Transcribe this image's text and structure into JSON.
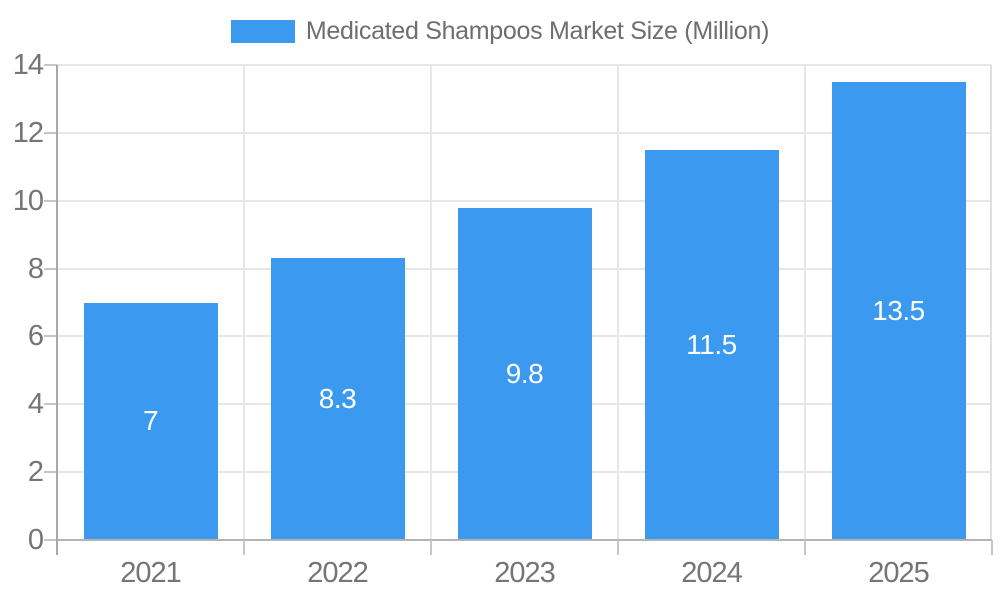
{
  "legend": {
    "label": "Medicated Shampoos Market Size (Million)"
  },
  "colors": {
    "bar": "#3B99F0",
    "grid": "#e7e7e7",
    "baseline": "#b3b3b3",
    "y_axis": "#a8a8a8",
    "tick": "#c6c6c6",
    "right_border": "#e0e0e0",
    "axis_label_text": "#757575",
    "legend_text": "#6e6e6e",
    "data_label_text": "#ffffff",
    "background": "#ffffff"
  },
  "chart_data": {
    "type": "bar",
    "categories": [
      "2021",
      "2022",
      "2023",
      "2024",
      "2025"
    ],
    "values": [
      7,
      8.3,
      9.8,
      11.5,
      13.5
    ],
    "data_labels": [
      "7",
      "8.3",
      "9.8",
      "11.5",
      "13.5"
    ],
    "title": "Medicated Shampoos Market Size (Million)",
    "xlabel": "",
    "ylabel": "",
    "ylim": [
      0,
      14
    ],
    "ytick_step": 2,
    "ytick_labels": [
      "0",
      "2",
      "4",
      "6",
      "8",
      "10",
      "12",
      "14"
    ],
    "grid": true,
    "legend_position": "top-center",
    "data_label_position": "inside-center"
  }
}
